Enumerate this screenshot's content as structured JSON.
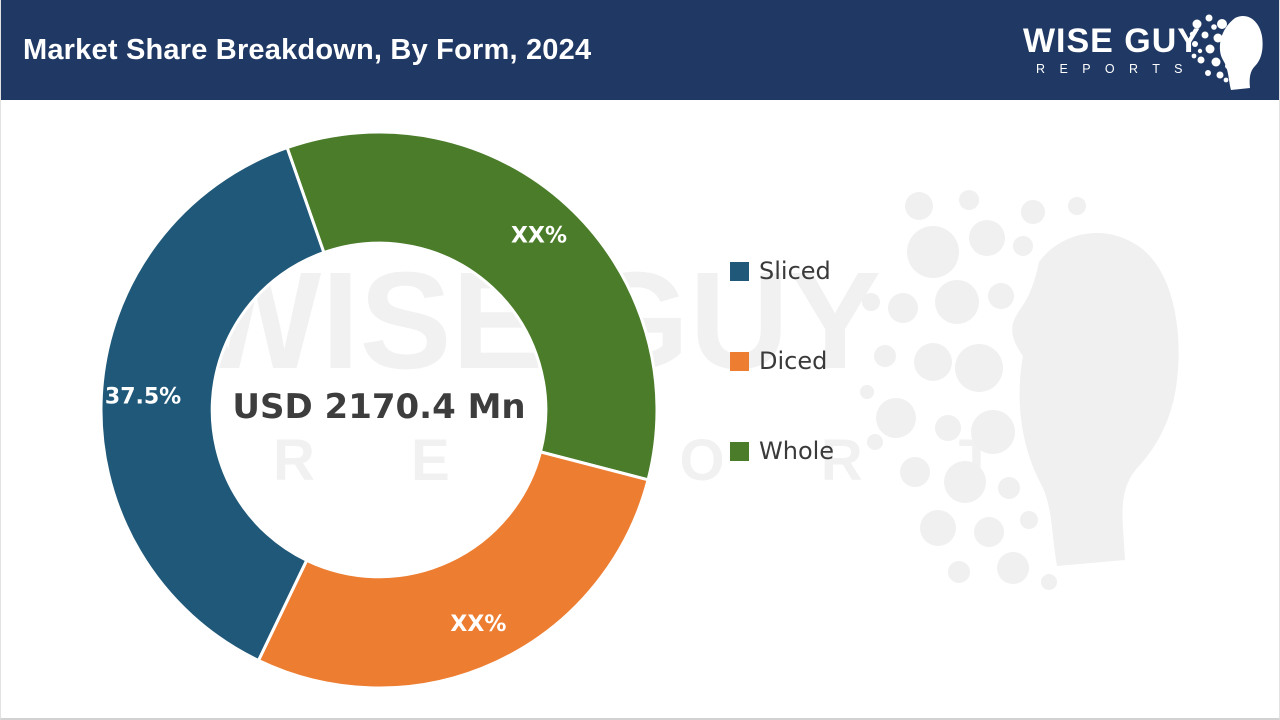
{
  "header": {
    "title": "Market Share Breakdown, By Form, 2024",
    "logo": {
      "line1": "WISE GUY",
      "line2": "R E P O R T S"
    }
  },
  "watermark": {
    "wordmark": "WISE GUY",
    "reports": "R E P O R T S"
  },
  "chart_data": {
    "type": "pie",
    "subtype": "donut",
    "title": "Market Share Breakdown, By Form, 2024",
    "center_label": "USD 2170.4 Mn",
    "units": "percent share",
    "start_angle_deg": -19.3,
    "donut_hole_ratio": 0.6,
    "slices": [
      {
        "name": "Whole",
        "value": 34.4,
        "display_label": "XX%",
        "color": "#4a7c29"
      },
      {
        "name": "Diced",
        "value": 28.1,
        "display_label": "XX%",
        "color": "#ed7d31"
      },
      {
        "name": "Sliced",
        "value": 37.5,
        "display_label": "37.5%",
        "color": "#1f5878"
      }
    ],
    "legend": [
      "Sliced",
      "Diced",
      "Whole"
    ],
    "legend_position": "right",
    "label_color": "#ffffff",
    "header_color": "#1f3864"
  }
}
